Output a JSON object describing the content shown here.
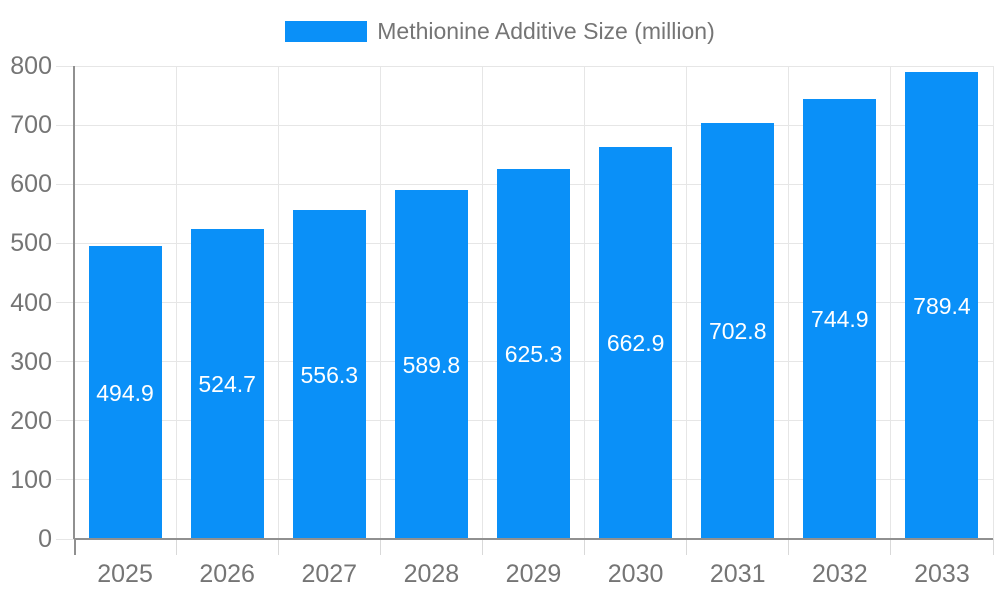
{
  "legend": {
    "label": "Methionine Additive Size (million)"
  },
  "colors": {
    "bar": "#0a90f8",
    "grid": "#e6e6e6",
    "boundary_tick": "#d9d9d9",
    "axis": "#909090",
    "tick_text": "#757575",
    "value_text": "#ffffff",
    "background": "#ffffff"
  },
  "chart_data": {
    "type": "bar",
    "title": "",
    "xlabel": "",
    "ylabel": "",
    "categories": [
      "2025",
      "2026",
      "2027",
      "2028",
      "2029",
      "2030",
      "2031",
      "2032",
      "2033"
    ],
    "series": [
      {
        "name": "Methionine Additive Size (million)",
        "values": [
          494.9,
          524.7,
          556.3,
          589.8,
          625.3,
          662.9,
          702.8,
          744.9,
          789.4
        ]
      }
    ],
    "value_label_format": "one-decimal",
    "value_labels_position": "inside-middle",
    "ylim": [
      0,
      800
    ],
    "yticks": [
      0,
      100,
      200,
      300,
      400,
      500,
      600,
      700,
      800
    ],
    "grid": true,
    "legend_position": "top-center"
  }
}
